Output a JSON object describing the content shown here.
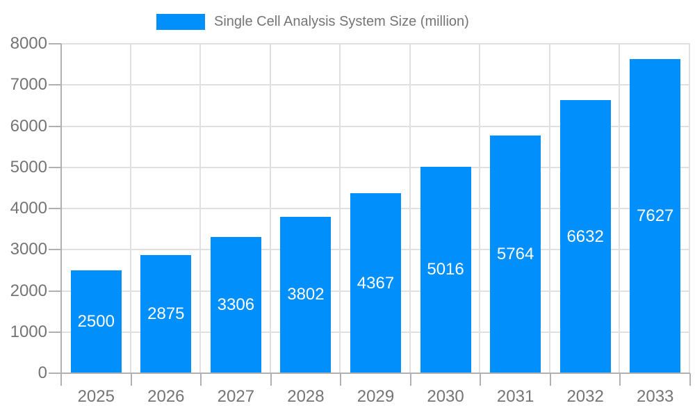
{
  "legend": {
    "label": "Single Cell Analysis System Size (million)"
  },
  "chart_data": {
    "type": "bar",
    "categories": [
      "2025",
      "2026",
      "2027",
      "2028",
      "2029",
      "2030",
      "2031",
      "2032",
      "2033"
    ],
    "series": [
      {
        "name": "Single Cell Analysis System Size (million)",
        "values": [
          2500,
          2875,
          3306,
          3802,
          4367,
          5016,
          5764,
          6632,
          7627
        ],
        "color": "#008FFB"
      }
    ],
    "value_labels": [
      2500,
      2875,
      3306,
      3802,
      4367,
      5016,
      5764,
      6632,
      7627
    ],
    "xlabel": "",
    "ylabel": "",
    "ylim": [
      0,
      8000
    ],
    "yticks": [
      0,
      1000,
      2000,
      3000,
      4000,
      5000,
      6000,
      7000,
      8000
    ],
    "grid": true,
    "legend_position": "top-center",
    "value_label_position": "inside-center",
    "colors": {
      "bar": "#008FFB",
      "axis_text": "#757575",
      "bar_label_text": "#ffffff",
      "gridline": "#e0e0e0",
      "axis_line": "#b0b0b0"
    }
  }
}
